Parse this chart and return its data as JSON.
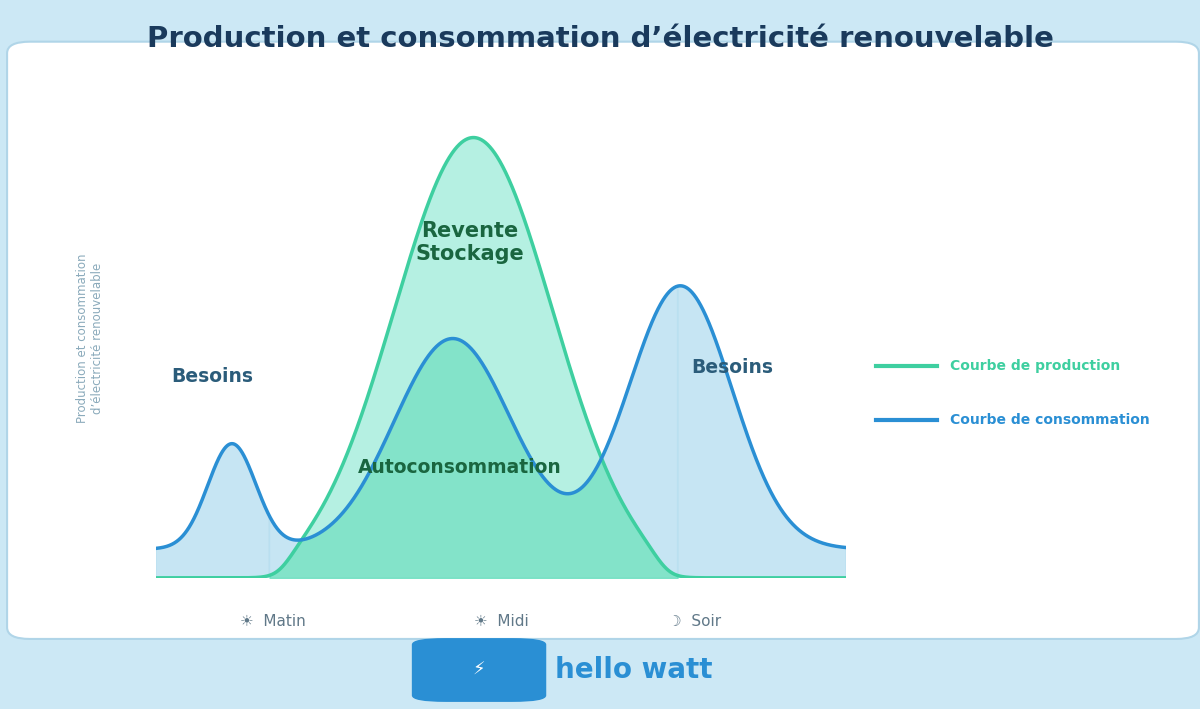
{
  "title": "Production et consommation d’électricité renouvelable",
  "title_color": "#1a3a5c",
  "bg_outer": "#cce8f5",
  "bg_inner": "#ffffff",
  "production_line_color": "#3ecfa0",
  "production_fill_color": "#a8eedd",
  "consumption_line_color": "#2a8fd4",
  "consumption_fill_besoins": "#b8dff0",
  "autoconso_fill_color": "#6ddfc0",
  "ylabel": "Production et consommation\nd’électricité renouvelable",
  "ylabel_color": "#8aaabb",
  "legend_production": "Courbe de production",
  "legend_consumption": "Courbe de consommation",
  "legend_production_color": "#3ecfa0",
  "legend_consumption_color": "#2a8fd4",
  "label_revente": "Revente\nStockage",
  "label_autoconso": "Autoconsommation",
  "label_besoins_left": "Besoins",
  "label_besoins_right": "Besoins",
  "label_matin": "Matin",
  "label_midi": "Midi",
  "label_soir": "Soir",
  "label_color_revente": "#1a6640",
  "label_color_autoconso": "#1a6640",
  "label_color_besoins": "#2b5c7a",
  "axis_color": "#9ab0bf",
  "hellowatt_color": "#2a8fd4"
}
